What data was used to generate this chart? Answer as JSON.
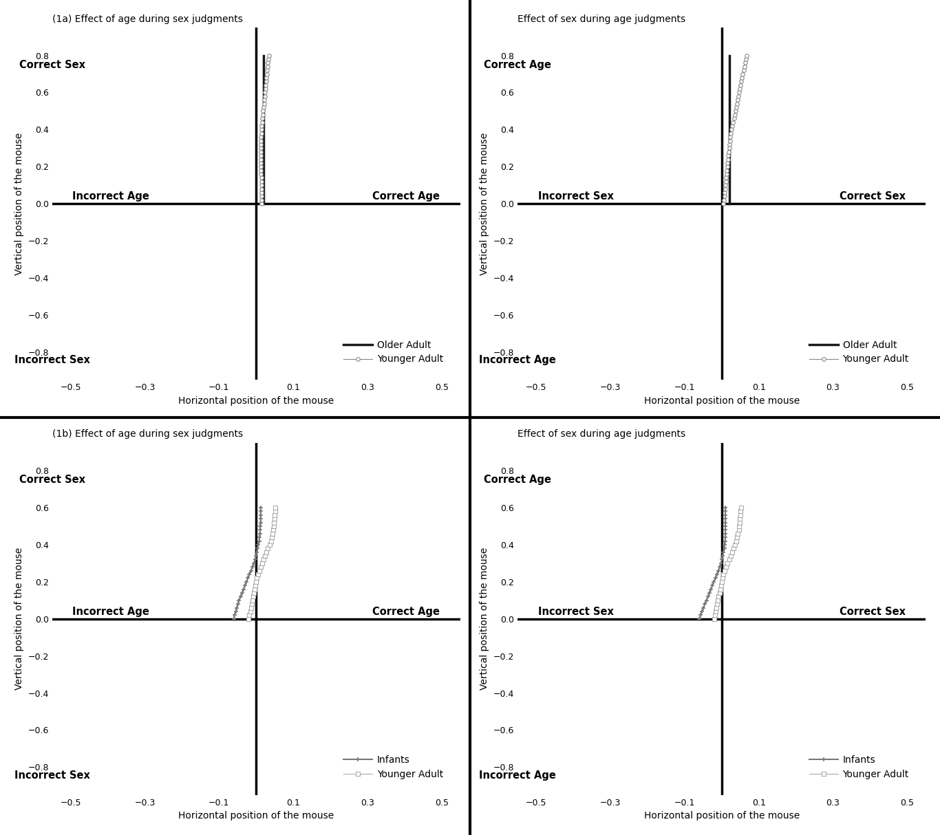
{
  "panels": [
    {
      "title": "(1a) Effect of age during sex judgments",
      "title_bold": false,
      "xlabel": "Horizontal position of the mouse",
      "ylabel": "Vertical position of the mouse",
      "xlim": [
        -0.55,
        0.55
      ],
      "ylim": [
        -0.95,
        0.95
      ],
      "xticks": [
        -0.5,
        -0.3,
        -0.1,
        0.1,
        0.3,
        0.5
      ],
      "yticks": [
        -0.8,
        -0.6,
        -0.4,
        -0.2,
        0.0,
        0.2,
        0.4,
        0.6,
        0.8
      ],
      "top_label": "Correct Sex",
      "bottom_label": "Incorrect Sex",
      "left_label": "Incorrect Age",
      "right_label": "Correct Age",
      "series": [
        {
          "label": "Older Adult",
          "x": [
            0.02,
            0.02,
            0.02,
            0.02,
            0.02,
            0.02,
            0.02,
            0.02,
            0.02,
            0.02,
            0.02,
            0.02,
            0.02,
            0.02,
            0.02,
            0.02,
            0.02,
            0.02,
            0.02,
            0.02,
            0.02,
            0.02,
            0.02,
            0.02,
            0.02,
            0.02,
            0.02,
            0.02,
            0.02,
            0.02,
            0.02,
            0.02,
            0.02,
            0.02,
            0.02,
            0.02,
            0.02,
            0.02,
            0.02,
            0.02,
            0.02
          ],
          "y": [
            0.0,
            0.02,
            0.04,
            0.06,
            0.08,
            0.1,
            0.12,
            0.14,
            0.16,
            0.18,
            0.2,
            0.22,
            0.24,
            0.26,
            0.28,
            0.3,
            0.32,
            0.34,
            0.36,
            0.38,
            0.4,
            0.42,
            0.44,
            0.46,
            0.48,
            0.5,
            0.52,
            0.54,
            0.56,
            0.58,
            0.6,
            0.62,
            0.64,
            0.66,
            0.68,
            0.7,
            0.72,
            0.74,
            0.76,
            0.78,
            0.8
          ],
          "color": "#1a1a1a",
          "linestyle": "-",
          "marker": "None",
          "linewidth": 2.5,
          "markersize": 0
        },
        {
          "label": "Younger Adult",
          "x": [
            0.015,
            0.015,
            0.015,
            0.015,
            0.014,
            0.014,
            0.014,
            0.014,
            0.013,
            0.013,
            0.013,
            0.013,
            0.013,
            0.013,
            0.013,
            0.013,
            0.013,
            0.013,
            0.013,
            0.014,
            0.014,
            0.015,
            0.016,
            0.017,
            0.018,
            0.019,
            0.02,
            0.021,
            0.022,
            0.023,
            0.024,
            0.025,
            0.026,
            0.027,
            0.028,
            0.029,
            0.03,
            0.031,
            0.032,
            0.033,
            0.034
          ],
          "y": [
            0.0,
            0.02,
            0.04,
            0.06,
            0.08,
            0.1,
            0.12,
            0.14,
            0.16,
            0.18,
            0.2,
            0.22,
            0.24,
            0.26,
            0.28,
            0.3,
            0.32,
            0.34,
            0.36,
            0.38,
            0.4,
            0.42,
            0.44,
            0.46,
            0.48,
            0.5,
            0.52,
            0.54,
            0.56,
            0.58,
            0.6,
            0.62,
            0.64,
            0.66,
            0.68,
            0.7,
            0.72,
            0.74,
            0.76,
            0.78,
            0.8
          ],
          "color": "#888888",
          "linestyle": "-",
          "marker": "o",
          "linewidth": 0.8,
          "markersize": 4,
          "markerfacecolor": "white",
          "markeredgewidth": 0.8
        }
      ]
    },
    {
      "title": "Effect of sex during age judgments",
      "title_bold": false,
      "xlabel": "Horizontal position of the mouse",
      "ylabel": "Vertical position of the mouse",
      "xlim": [
        -0.55,
        0.55
      ],
      "ylim": [
        -0.95,
        0.95
      ],
      "xticks": [
        -0.5,
        -0.3,
        -0.1,
        0.1,
        0.3,
        0.5
      ],
      "yticks": [
        -0.8,
        -0.6,
        -0.4,
        -0.2,
        0.0,
        0.2,
        0.4,
        0.6,
        0.8
      ],
      "top_label": "Correct Age",
      "bottom_label": "Incorrect Age",
      "left_label": "Incorrect Sex",
      "right_label": "Correct Sex",
      "series": [
        {
          "label": "Older Adult",
          "x": [
            0.02,
            0.02,
            0.02,
            0.02,
            0.02,
            0.02,
            0.02,
            0.02,
            0.02,
            0.02,
            0.02,
            0.02,
            0.02,
            0.02,
            0.02,
            0.02,
            0.02,
            0.02,
            0.02,
            0.02,
            0.02,
            0.02,
            0.02,
            0.02,
            0.02,
            0.02,
            0.02,
            0.02,
            0.02,
            0.02,
            0.02,
            0.02,
            0.02,
            0.02,
            0.02,
            0.02,
            0.02,
            0.02,
            0.02,
            0.02,
            0.02
          ],
          "y": [
            0.0,
            0.02,
            0.04,
            0.06,
            0.08,
            0.1,
            0.12,
            0.14,
            0.16,
            0.18,
            0.2,
            0.22,
            0.24,
            0.26,
            0.28,
            0.3,
            0.32,
            0.34,
            0.36,
            0.38,
            0.4,
            0.42,
            0.44,
            0.46,
            0.48,
            0.5,
            0.52,
            0.54,
            0.56,
            0.58,
            0.6,
            0.62,
            0.64,
            0.66,
            0.68,
            0.7,
            0.72,
            0.74,
            0.76,
            0.78,
            0.8
          ],
          "color": "#1a1a1a",
          "linestyle": "-",
          "marker": "None",
          "linewidth": 2.5,
          "markersize": 0
        },
        {
          "label": "Younger Adult",
          "x": [
            0.005,
            0.006,
            0.007,
            0.008,
            0.009,
            0.01,
            0.011,
            0.012,
            0.013,
            0.014,
            0.015,
            0.016,
            0.017,
            0.018,
            0.019,
            0.02,
            0.021,
            0.022,
            0.023,
            0.025,
            0.027,
            0.029,
            0.031,
            0.033,
            0.035,
            0.037,
            0.039,
            0.041,
            0.043,
            0.045,
            0.047,
            0.049,
            0.051,
            0.053,
            0.055,
            0.057,
            0.059,
            0.061,
            0.063,
            0.065,
            0.067
          ],
          "y": [
            0.0,
            0.02,
            0.04,
            0.06,
            0.08,
            0.1,
            0.12,
            0.14,
            0.16,
            0.18,
            0.2,
            0.22,
            0.24,
            0.26,
            0.28,
            0.3,
            0.32,
            0.34,
            0.36,
            0.38,
            0.4,
            0.42,
            0.44,
            0.46,
            0.48,
            0.5,
            0.52,
            0.54,
            0.56,
            0.58,
            0.6,
            0.62,
            0.64,
            0.66,
            0.68,
            0.7,
            0.72,
            0.74,
            0.76,
            0.78,
            0.8
          ],
          "color": "#888888",
          "linestyle": "-",
          "marker": "o",
          "linewidth": 0.8,
          "markersize": 4,
          "markerfacecolor": "white",
          "markeredgewidth": 0.8
        }
      ]
    },
    {
      "title": "(1b) Effect of age during sex judgments",
      "title_bold": false,
      "xlabel": "Horizontal position of the mouse",
      "ylabel": "Vertical position of the mouse",
      "xlim": [
        -0.55,
        0.55
      ],
      "ylim": [
        -0.95,
        0.95
      ],
      "xticks": [
        -0.5,
        -0.3,
        -0.1,
        0.1,
        0.3,
        0.5
      ],
      "yticks": [
        -0.8,
        -0.6,
        -0.4,
        -0.2,
        0.0,
        0.2,
        0.4,
        0.6,
        0.8
      ],
      "top_label": "Correct Sex",
      "bottom_label": "Incorrect Sex",
      "left_label": "Incorrect Age",
      "right_label": "Correct Age",
      "series": [
        {
          "label": "Infants",
          "x": [
            -0.06,
            -0.058,
            -0.055,
            -0.052,
            -0.049,
            -0.046,
            -0.042,
            -0.038,
            -0.034,
            -0.03,
            -0.026,
            -0.022,
            -0.018,
            -0.014,
            -0.01,
            -0.006,
            -0.003,
            0.0,
            0.002,
            0.004,
            0.006,
            0.008,
            0.009,
            0.01,
            0.011,
            0.011,
            0.012,
            0.012,
            0.012,
            0.012,
            0.012
          ],
          "y": [
            0.0,
            0.02,
            0.04,
            0.06,
            0.08,
            0.1,
            0.12,
            0.14,
            0.16,
            0.18,
            0.2,
            0.22,
            0.24,
            0.26,
            0.28,
            0.3,
            0.32,
            0.34,
            0.36,
            0.38,
            0.4,
            0.42,
            0.44,
            0.46,
            0.48,
            0.5,
            0.52,
            0.54,
            0.56,
            0.58,
            0.6
          ],
          "color": "#777777",
          "linestyle": "-",
          "marker": "+",
          "linewidth": 1.5,
          "markersize": 5,
          "markeredgewidth": 1.2
        },
        {
          "label": "Younger Adult",
          "x": [
            -0.02,
            -0.018,
            -0.016,
            -0.014,
            -0.012,
            -0.01,
            -0.008,
            -0.006,
            -0.004,
            -0.002,
            0.0,
            0.002,
            0.005,
            0.008,
            0.012,
            0.016,
            0.02,
            0.024,
            0.028,
            0.032,
            0.036,
            0.04,
            0.042,
            0.044,
            0.046,
            0.047,
            0.048,
            0.049,
            0.05,
            0.051,
            0.052
          ],
          "y": [
            0.0,
            0.02,
            0.04,
            0.06,
            0.08,
            0.1,
            0.12,
            0.14,
            0.16,
            0.18,
            0.2,
            0.22,
            0.24,
            0.26,
            0.28,
            0.3,
            0.32,
            0.34,
            0.36,
            0.38,
            0.4,
            0.42,
            0.44,
            0.46,
            0.48,
            0.5,
            0.52,
            0.54,
            0.56,
            0.58,
            0.6
          ],
          "color": "#aaaaaa",
          "linestyle": "-",
          "marker": "s",
          "linewidth": 0.8,
          "markersize": 4,
          "markerfacecolor": "white",
          "markeredgewidth": 0.8
        }
      ]
    },
    {
      "title": "Effect of sex during age judgments",
      "title_bold": false,
      "xlabel": "Horizontal position of the mouse",
      "ylabel": "Vertical position of the mouse",
      "xlim": [
        -0.55,
        0.55
      ],
      "ylim": [
        -0.95,
        0.95
      ],
      "xticks": [
        -0.5,
        -0.3,
        -0.1,
        0.1,
        0.3,
        0.5
      ],
      "yticks": [
        -0.8,
        -0.6,
        -0.4,
        -0.2,
        0.0,
        0.2,
        0.4,
        0.6,
        0.8
      ],
      "top_label": "Correct Age",
      "bottom_label": "Incorrect Age",
      "left_label": "Incorrect Sex",
      "right_label": "Correct Sex",
      "series": [
        {
          "label": "Infants",
          "x": [
            -0.06,
            -0.057,
            -0.053,
            -0.049,
            -0.045,
            -0.041,
            -0.037,
            -0.033,
            -0.029,
            -0.025,
            -0.021,
            -0.017,
            -0.013,
            -0.009,
            -0.005,
            -0.002,
            0.001,
            0.003,
            0.005,
            0.007,
            0.008,
            0.009,
            0.01,
            0.01,
            0.01,
            0.01,
            0.01,
            0.01,
            0.01,
            0.01,
            0.01
          ],
          "y": [
            0.0,
            0.02,
            0.04,
            0.06,
            0.08,
            0.1,
            0.12,
            0.14,
            0.16,
            0.18,
            0.2,
            0.22,
            0.24,
            0.26,
            0.28,
            0.3,
            0.32,
            0.34,
            0.36,
            0.38,
            0.4,
            0.42,
            0.44,
            0.46,
            0.48,
            0.5,
            0.52,
            0.54,
            0.56,
            0.58,
            0.6
          ],
          "color": "#777777",
          "linestyle": "-",
          "marker": "+",
          "linewidth": 1.5,
          "markersize": 5,
          "markeredgewidth": 1.2
        },
        {
          "label": "Younger Adult",
          "x": [
            -0.02,
            -0.018,
            -0.016,
            -0.014,
            -0.012,
            -0.01,
            -0.008,
            -0.006,
            -0.004,
            -0.002,
            0.0,
            0.002,
            0.005,
            0.008,
            0.012,
            0.016,
            0.02,
            0.024,
            0.028,
            0.032,
            0.036,
            0.04,
            0.042,
            0.044,
            0.046,
            0.047,
            0.048,
            0.049,
            0.05,
            0.051,
            0.052
          ],
          "y": [
            0.0,
            0.02,
            0.04,
            0.06,
            0.08,
            0.1,
            0.12,
            0.14,
            0.16,
            0.18,
            0.2,
            0.22,
            0.24,
            0.26,
            0.28,
            0.3,
            0.32,
            0.34,
            0.36,
            0.38,
            0.4,
            0.42,
            0.44,
            0.46,
            0.48,
            0.5,
            0.52,
            0.54,
            0.56,
            0.58,
            0.6
          ],
          "color": "#aaaaaa",
          "linestyle": "-",
          "marker": "s",
          "linewidth": 0.8,
          "markersize": 4,
          "markerfacecolor": "white",
          "markeredgewidth": 0.8
        }
      ]
    }
  ],
  "divider_color": "#000000",
  "divider_linewidth": 3,
  "axis_linewidth": 2.5,
  "label_fontsize": 10,
  "title_fontsize": 10,
  "tick_fontsize": 9,
  "quadrant_label_fontsize": 10.5
}
